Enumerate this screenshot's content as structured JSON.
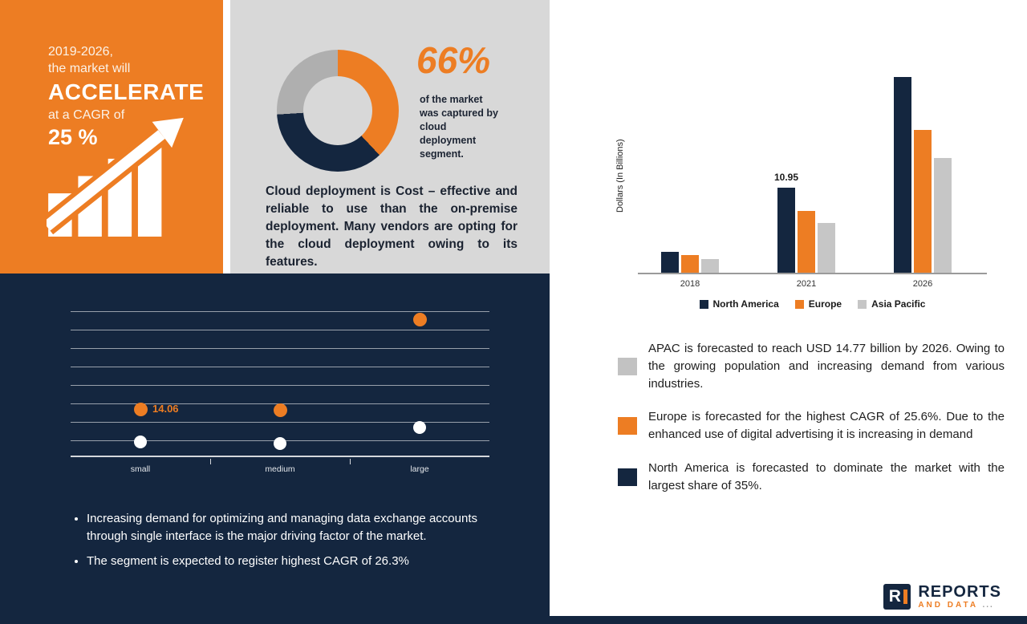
{
  "colors": {
    "orange": "#ED7D23",
    "navy": "#14263F",
    "panel_gray": "#D8D8D8",
    "slice_gray": "#AFAFAF",
    "bar_gray": "#C6C6C6"
  },
  "left_panel": {
    "line1": "2019-2026,",
    "line2": "the market will",
    "accelerate": "ACCELERATE",
    "line3": "at a CAGR of",
    "cagr": "25 %"
  },
  "donut_section": {
    "big_pct": "66%",
    "caption": "of the market was captured by cloud deployment segment.",
    "paragraph": "Cloud deployment is Cost – effective and reliable to use than the on-premise deployment. Many vendors are opting for the cloud deployment owing to its features."
  },
  "bullets": [
    "Increasing demand for optimizing and managing data exchange accounts through single interface is the major driving factor of the market.",
    "The segment is expected to register highest CAGR of 26.3%"
  ],
  "insights": [
    {
      "marker": "gray",
      "text": "APAC is forecasted to reach USD 14.77 billion by 2026. Owing to the growing population and increasing demand from various industries."
    },
    {
      "marker": "orange",
      "text": "Europe is forecasted for the highest CAGR of 25.6%. Due to the enhanced use of digital advertising it is increasing in demand"
    },
    {
      "marker": "navy",
      "text": "North America is forecasted to dominate the market with the largest share of 35%."
    }
  ],
  "logo": {
    "letter": "R",
    "top": "REPORTS",
    "bottom": "AND DATA",
    "dots": "..."
  },
  "chart_data": [
    {
      "id": "donut",
      "type": "pie",
      "values": [
        38,
        36,
        26
      ],
      "colors": [
        "#ED7D23",
        "#14263F",
        "#AFAFAF"
      ],
      "annotation": "66% of the market was captured by cloud deployment segment."
    },
    {
      "id": "dotplot",
      "type": "scatter",
      "categories": [
        "small",
        "medium",
        "large"
      ],
      "series": [
        {
          "name": "orange-series",
          "color": "#ED7D23",
          "values": [
            14.06,
            13.8,
            40.3
          ]
        },
        {
          "name": "white-series",
          "color": "#FFFFFF",
          "values": [
            4.5,
            4.0,
            8.7
          ]
        }
      ],
      "ylim": [
        0,
        44
      ],
      "grid": true,
      "labeled_point": {
        "series": "orange-series",
        "category": "small",
        "label": "14.06"
      }
    },
    {
      "id": "bars",
      "type": "bar",
      "categories": [
        "2018",
        "2021",
        "2026"
      ],
      "series": [
        {
          "name": "North America",
          "color": "#14263F",
          "values": [
            2.7,
            10.95,
            25.2
          ]
        },
        {
          "name": "Europe",
          "color": "#ED7D23",
          "values": [
            2.3,
            8.0,
            18.4
          ]
        },
        {
          "name": "Asia Pacific",
          "color": "#C6C6C6",
          "values": [
            1.75,
            6.4,
            14.77
          ]
        }
      ],
      "ylabel": "Dollars (In Billions)",
      "ylim": [
        0,
        26
      ],
      "legend_position": "bottom",
      "value_label": {
        "series": "North America",
        "category": "2021",
        "text": "10.95"
      }
    }
  ]
}
